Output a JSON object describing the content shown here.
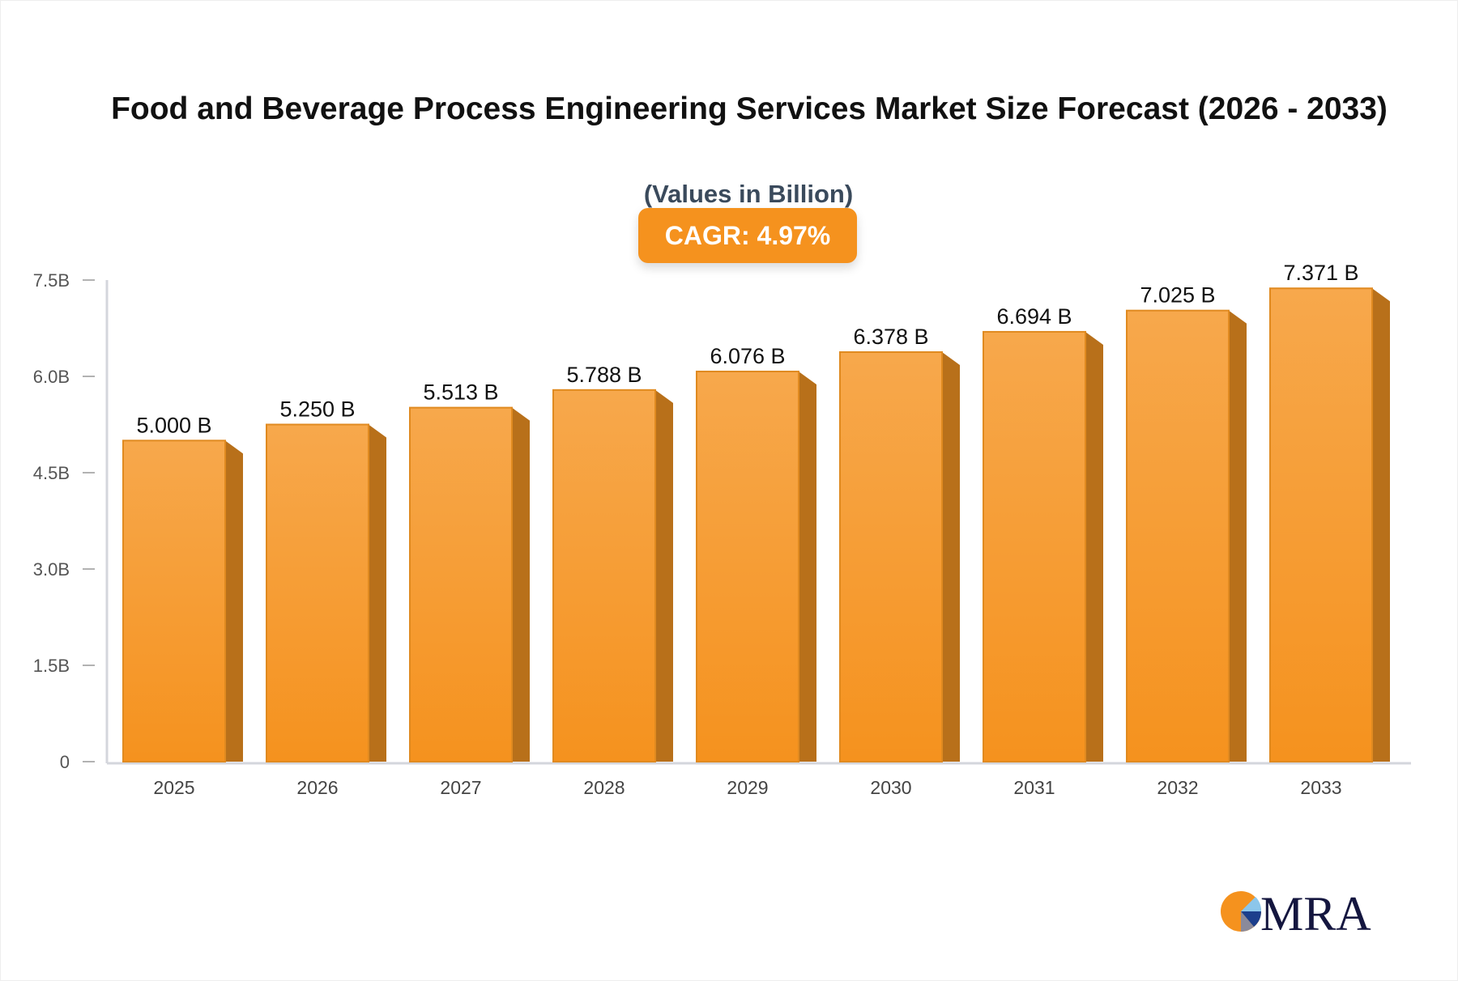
{
  "chart_data": {
    "type": "bar",
    "title": "Food and Beverage Process Engineering Services Market Size Forecast (2026 - 2033)",
    "subtitle": "(Values in Billion)",
    "annotation": "CAGR: 4.97%",
    "categories": [
      "2025",
      "2026",
      "2027",
      "2028",
      "2029",
      "2030",
      "2031",
      "2032",
      "2033"
    ],
    "values": [
      5.0,
      5.25,
      5.513,
      5.788,
      6.076,
      6.378,
      6.694,
      7.025,
      7.371
    ],
    "data_labels": [
      "5.000 B",
      "5.250 B",
      "5.513 B",
      "5.788 B",
      "6.076 B",
      "6.378 B",
      "6.694 B",
      "7.025 B",
      "7.371 B"
    ],
    "y_ticks": [
      0,
      1.5,
      3.0,
      4.5,
      6.0,
      7.5
    ],
    "y_tick_labels": [
      "0",
      "1.5B",
      "3.0B",
      "4.5B",
      "6.0B",
      "7.5B"
    ],
    "ylim": [
      0,
      7.5
    ],
    "grid": false,
    "legend": "none",
    "colors": {
      "bar_front": "#f7a548",
      "bar_front_bottom": "#f5921e",
      "bar_side": "#b8701a",
      "bar_edge": "#e08a20",
      "badge": "#f5921e"
    }
  },
  "logo": {
    "text": "MRA"
  }
}
